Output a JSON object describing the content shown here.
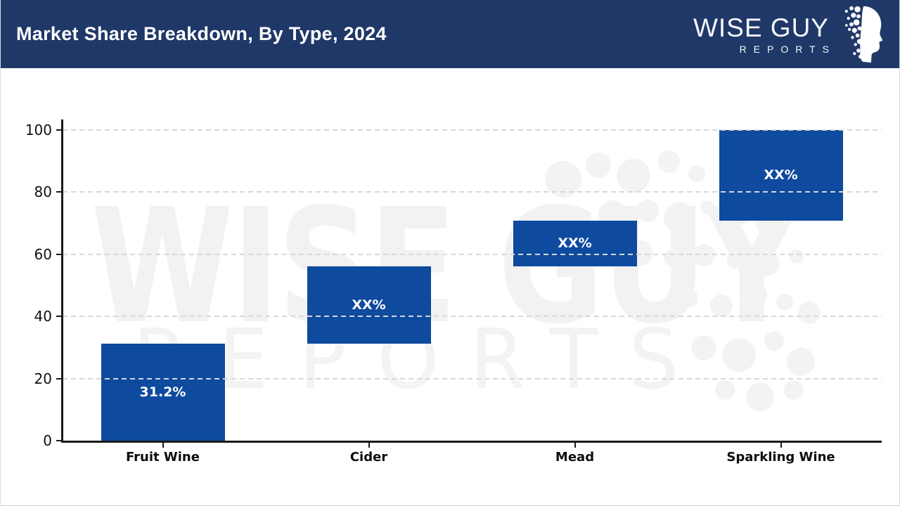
{
  "header": {
    "title": "Market Share Breakdown, By Type, 2024",
    "bg_color": "#1F3868",
    "logo": {
      "wordmark": "WISE GUY",
      "subtitle": "REPORTS"
    }
  },
  "watermark": {
    "wordmark": "WISE GUY",
    "subtitle": "REPORTS"
  },
  "chart_data": {
    "type": "bar",
    "variant": "waterfall",
    "title": "Market Share Breakdown, By Type, 2024",
    "categories": [
      "Fruit Wine",
      "Cider",
      "Mead",
      "Sparkling Wine"
    ],
    "series": [
      {
        "name": "Market Share (%)",
        "segments": [
          {
            "category": "Fruit Wine",
            "start": 0,
            "end": 31.2,
            "label": "31.2%"
          },
          {
            "category": "Cider",
            "start": 31.2,
            "end": 56.1,
            "label": "XX%"
          },
          {
            "category": "Mead",
            "start": 56.1,
            "end": 70.7,
            "label": "XX%"
          },
          {
            "category": "Sparkling Wine",
            "start": 70.7,
            "end": 100,
            "label": "XX%"
          }
        ]
      }
    ],
    "ylim": [
      0,
      100
    ],
    "yticks": [
      0,
      20,
      40,
      60,
      80,
      100
    ],
    "grid": "horizontal-dashed",
    "legend": "none",
    "bar_color": "#0E4A9E",
    "bar_label_color": "#FFFFFF"
  }
}
